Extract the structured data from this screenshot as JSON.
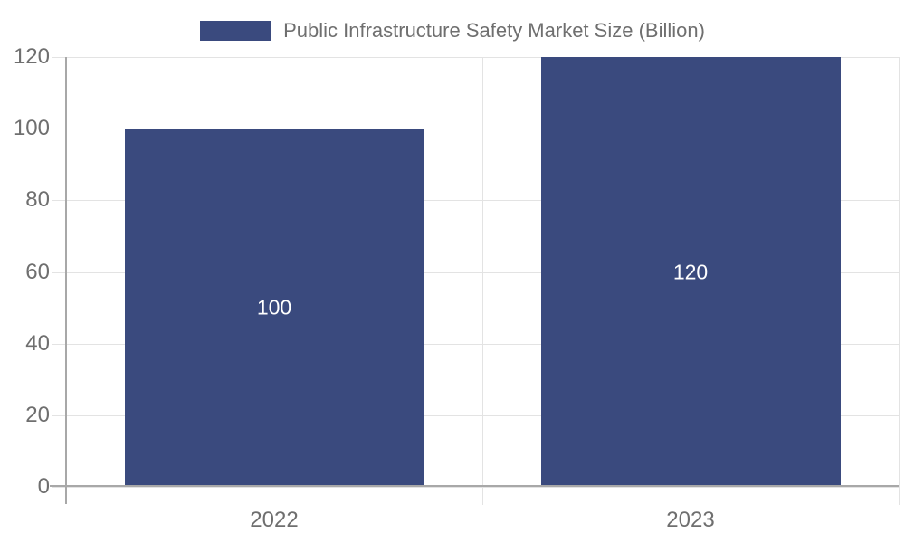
{
  "chart_data": {
    "type": "bar",
    "title": "Public Infrastructure Safety Market Size (Billion)",
    "categories": [
      "2022",
      "2023"
    ],
    "values": [
      100,
      120
    ],
    "value_labels": [
      "100",
      "120"
    ],
    "xlabel": "",
    "ylabel": "",
    "ylim": [
      0,
      120
    ],
    "yticks": [
      0,
      20,
      40,
      60,
      80,
      100,
      120
    ],
    "grid": true,
    "legend_position": "top-center",
    "colors": {
      "bar": "#3A4A7E",
      "grid": "#E3E3E3",
      "axis": "#A8A8A8",
      "tick_text": "#6F6F6F",
      "bar_label": "#FFFFFF",
      "background": "#FFFFFF"
    }
  }
}
